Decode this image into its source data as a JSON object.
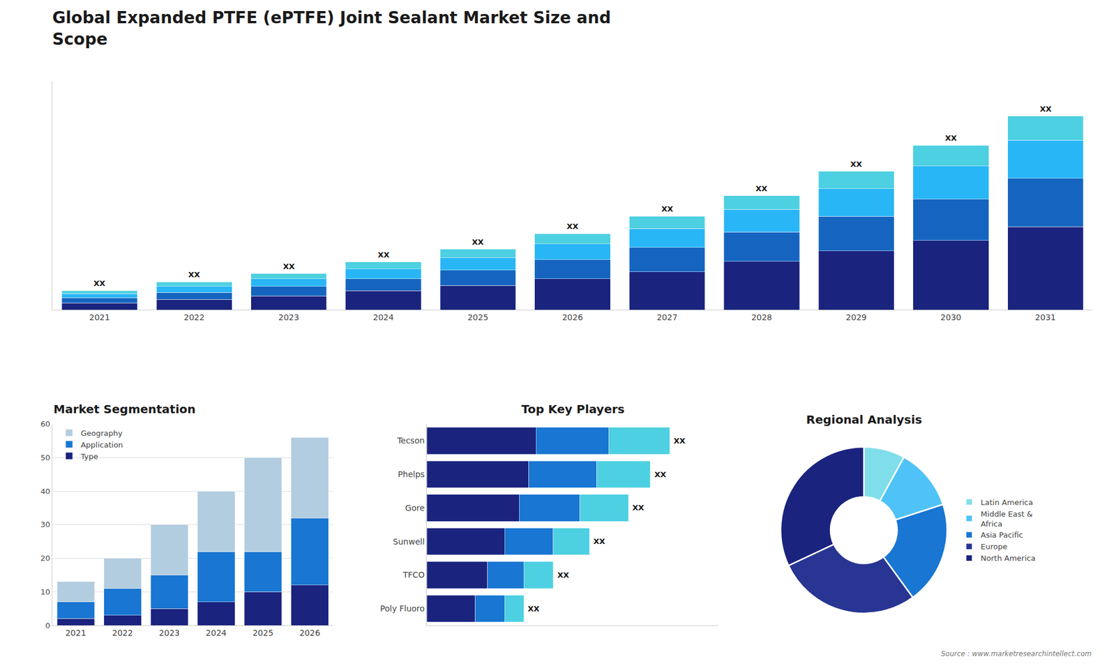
{
  "title": "Global Expanded PTFE (ePTFE) Joint Sealant Market Size and\nScope",
  "annotations": [
    "Source : www.marketresearchintellect.com"
  ],
  "chart_data": [
    {
      "type": "bar",
      "stacked": true,
      "tick_labels": "x",
      "grid": false,
      "categories": [
        "2021",
        "2022",
        "2023",
        "2024",
        "2025",
        "2026",
        "2027",
        "2028",
        "2029",
        "2030",
        "2031"
      ],
      "series": [
        {
          "color": "#1a237e",
          "values": [
            2.0,
            3.0,
            4.0,
            5.5,
            7.0,
            9.0,
            11.0,
            14.0,
            17.0,
            20.0,
            24.0
          ]
        },
        {
          "color": "#1565c0",
          "values": [
            1.5,
            2.0,
            2.8,
            3.5,
            4.5,
            5.5,
            7.0,
            8.5,
            10.0,
            12.0,
            14.0
          ]
        },
        {
          "color": "#29b6f6",
          "values": [
            1.2,
            1.8,
            2.2,
            2.8,
            3.5,
            4.5,
            5.5,
            6.5,
            8.0,
            9.5,
            11.0
          ]
        },
        {
          "color": "#4dd0e1",
          "values": [
            0.8,
            1.2,
            1.5,
            2.0,
            2.5,
            3.0,
            3.5,
            4.0,
            5.0,
            6.0,
            7.0
          ]
        }
      ],
      "ylim": [
        0,
        66
      ],
      "annotations": [
        {
          "category": "2021",
          "text": "XX"
        },
        {
          "category": "2022",
          "text": "XX"
        },
        {
          "category": "2023",
          "text": "XX"
        },
        {
          "category": "2024",
          "text": "XX"
        },
        {
          "category": "2025",
          "text": "XX"
        },
        {
          "category": "2026",
          "text": "XX"
        },
        {
          "category": "2027",
          "text": "XX"
        },
        {
          "category": "2028",
          "text": "XX"
        },
        {
          "category": "2029",
          "text": "XX"
        },
        {
          "category": "2030",
          "text": "XX"
        },
        {
          "category": "2031",
          "text": "XX"
        }
      ]
    },
    {
      "type": "bar",
      "stacked": true,
      "title": "Market Segmentation",
      "grid": true,
      "legend": "upper left",
      "categories": [
        "2021",
        "2022",
        "2023",
        "2024",
        "2025",
        "2026"
      ],
      "series": [
        {
          "name": "Type",
          "color": "#1a237e",
          "values": [
            2,
            3,
            5,
            7,
            10,
            12
          ]
        },
        {
          "name": "Application",
          "color": "#1976d2",
          "values": [
            5,
            8,
            10,
            15,
            12,
            20
          ]
        },
        {
          "name": "Geography",
          "color": "#b3cde0",
          "values": [
            6,
            9,
            15,
            18,
            28,
            24
          ]
        }
      ],
      "ylim": [
        0,
        60
      ],
      "yticks": [
        0,
        10,
        20,
        30,
        40,
        50,
        60
      ]
    },
    {
      "type": "bar",
      "stacked": true,
      "orientation": "horizontal",
      "title": "Top Key Players",
      "tick_labels": "y",
      "grid": false,
      "categories": [
        "Tecson",
        "Phelps",
        "Gore",
        "Sunwell",
        "TFCO",
        "Poly Fluoro"
      ],
      "series": [
        {
          "color": "#1a237e",
          "values": [
            4.5,
            4.2,
            3.8,
            3.2,
            2.5,
            2.0
          ]
        },
        {
          "color": "#1976d2",
          "values": [
            3.0,
            2.8,
            2.5,
            2.0,
            1.5,
            1.2
          ]
        },
        {
          "color": "#4dd0e1",
          "values": [
            2.5,
            2.2,
            2.0,
            1.5,
            1.2,
            0.8
          ]
        }
      ],
      "xlim": [
        0,
        12
      ],
      "annotations": [
        {
          "category": "Tecson",
          "text": "XX"
        },
        {
          "category": "Phelps",
          "text": "XX"
        },
        {
          "category": "Gore",
          "text": "XX"
        },
        {
          "category": "Sunwell",
          "text": "XX"
        },
        {
          "category": "TFCO",
          "text": "XX"
        },
        {
          "category": "Poly Fluoro",
          "text": "XX"
        }
      ]
    },
    {
      "type": "donut",
      "title": "Regional Analysis",
      "legend": "right",
      "categories": [
        "Latin America",
        "Middle East &\nAfrica",
        "Asia Pacific",
        "Europe",
        "North America"
      ],
      "values": [
        8,
        12,
        20,
        28,
        32
      ],
      "colors": [
        "#80deea",
        "#4fc3f7",
        "#1976d2",
        "#283593",
        "#1a237e"
      ]
    }
  ]
}
